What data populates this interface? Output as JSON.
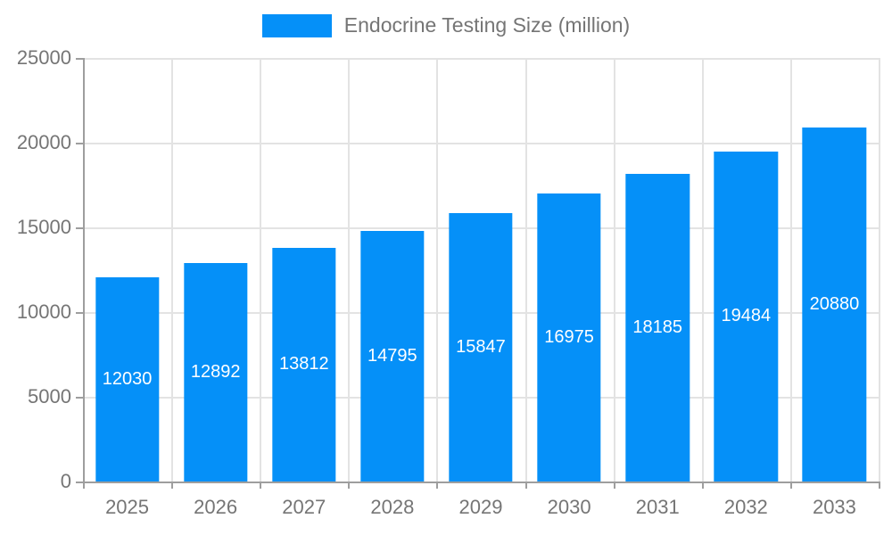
{
  "chart_data": {
    "type": "bar",
    "title": "",
    "series_name": "Endocrine Testing Size (million)",
    "categories": [
      "2025",
      "2026",
      "2027",
      "2028",
      "2029",
      "2030",
      "2031",
      "2032",
      "2033"
    ],
    "values": [
      12030,
      12892,
      13812,
      14795,
      15847,
      16975,
      18185,
      19484,
      20880
    ],
    "xlabel": "",
    "ylabel": "",
    "ylim": [
      0,
      25000
    ],
    "yticks": [
      0,
      5000,
      10000,
      15000,
      20000,
      25000
    ],
    "grid": true,
    "legend_position": "top",
    "value_labels": "inside-center",
    "colors": {
      "bar": "#0590f8",
      "value_label": "#ffffff",
      "axis_text": "#757575",
      "gridline": "#e3e3e3",
      "axis_line": "#9e9e9e",
      "background": "#ffffff"
    }
  }
}
